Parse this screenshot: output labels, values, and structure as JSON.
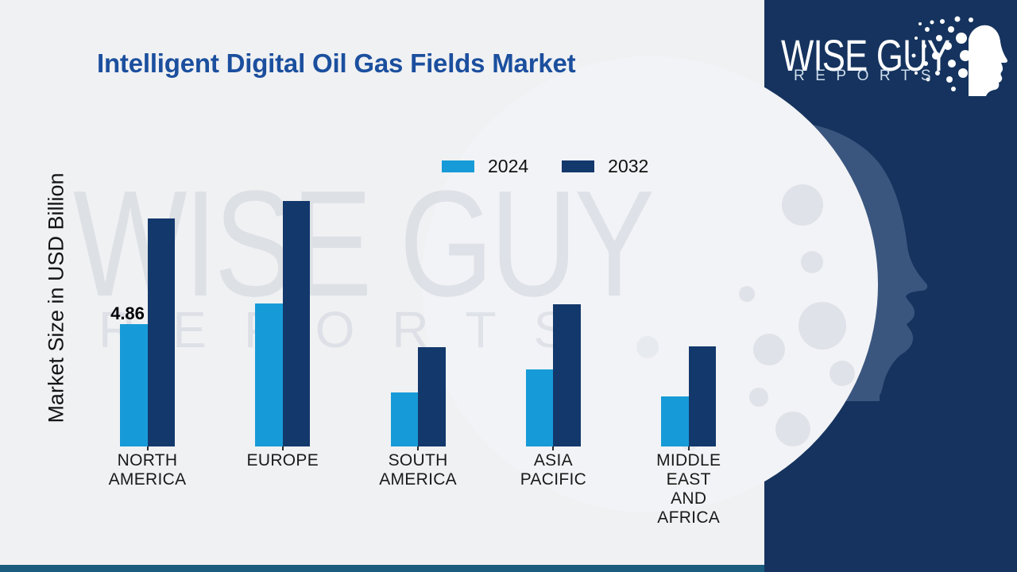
{
  "header": {
    "title": "Intelligent Digital Oil Gas Fields Market"
  },
  "brand": {
    "name_line1": "WISE GUY",
    "name_line2": "REPORTS",
    "watermark_line1": "WISE GUY",
    "watermark_line2": "REPORTS"
  },
  "chart_data": {
    "type": "bar",
    "title": "Intelligent Digital Oil Gas Fields Market",
    "xlabel": "",
    "ylabel": "Market Size in USD Billion",
    "categories": [
      "NORTH\nAMERICA",
      "EUROPE",
      "SOUTH\nAMERICA",
      "ASIA\nPACIFIC",
      "MIDDLE\nEAST\nAND\nAFRICA"
    ],
    "series": [
      {
        "name": "2024",
        "color": "#179bd8",
        "values": [
          4.86,
          5.68,
          2.15,
          3.06,
          1.99
        ]
      },
      {
        "name": "2032",
        "color": "#13386c",
        "values": [
          9.06,
          9.75,
          3.94,
          5.65,
          3.98
        ]
      }
    ],
    "annotations": [
      {
        "category_index": 0,
        "series_index": 0,
        "label": "4.86"
      }
    ],
    "legend_position": "top",
    "grid": false,
    "axis_line": false,
    "ylim": [
      0,
      10.5
    ]
  },
  "colors": {
    "background": "#f0f1f3",
    "title_blue": "#1b4f9e",
    "bar_2024": "#179bd8",
    "bar_2032": "#13386c",
    "panel_navy": "#15335e",
    "face_silhouette": "#3a567f",
    "moon_light": "#f2f3f6",
    "moon_crater": "#dfe2e8",
    "teal_strip": "#1b5d7e",
    "watermark_gray": "#c3c9d4"
  }
}
